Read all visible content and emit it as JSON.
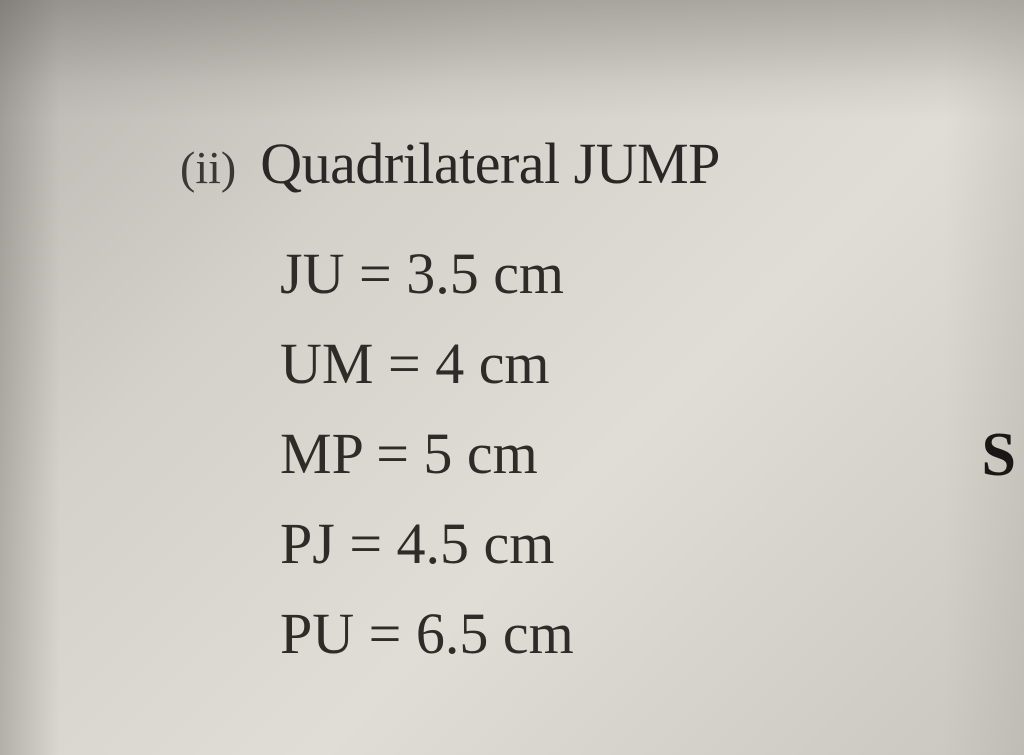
{
  "item_number": "(ii)",
  "heading": "Quadrilateral JUMP",
  "measurements": [
    {
      "label": "JU",
      "value": "3.5",
      "unit": "cm"
    },
    {
      "label": "UM",
      "value": "4",
      "unit": "cm"
    },
    {
      "label": "MP",
      "value": "5",
      "unit": "cm"
    },
    {
      "label": "PJ",
      "value": "4.5",
      "unit": "cm"
    },
    {
      "label": "PU",
      "value": "6.5",
      "unit": "cm"
    }
  ],
  "edge_partial_letter": "S",
  "colors": {
    "text": "#2a2826",
    "bg_light": "#e0ddd6",
    "bg_dark": "#b8b5b0"
  },
  "typography": {
    "heading_fontsize": 58,
    "body_fontsize": 58,
    "item_number_fontsize": 46,
    "font_family": "serif"
  }
}
